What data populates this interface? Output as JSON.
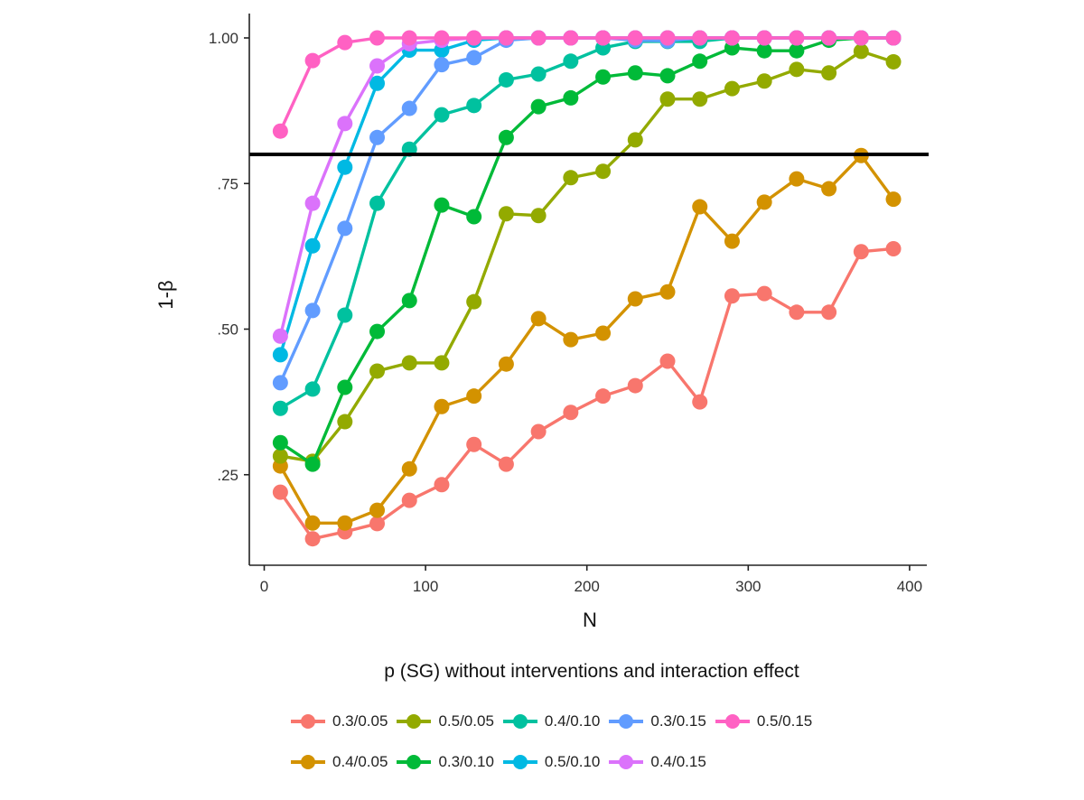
{
  "chart_data": {
    "type": "line",
    "title": "",
    "xlabel": "N",
    "ylabel": "1-β",
    "xlim": [
      -8,
      408
    ],
    "ylim": [
      0.095,
      1.04
    ],
    "x_ticks": [
      0,
      100,
      200,
      300,
      400
    ],
    "x_tick_labels": [
      "0",
      "100",
      "200",
      "300",
      "400"
    ],
    "y_ticks": [
      0.25,
      0.5,
      0.75,
      1.0
    ],
    "y_tick_labels": [
      ".25",
      ".50",
      ".75",
      "1.00"
    ],
    "grid": false,
    "reference_line": {
      "orientation": "horizontal",
      "y": 0.8,
      "color": "#000000"
    },
    "x": [
      10,
      30,
      50,
      70,
      90,
      110,
      130,
      150,
      170,
      190,
      210,
      230,
      250,
      270,
      290,
      310,
      330,
      350,
      370,
      390
    ],
    "legend": {
      "title": "p (SG) without interventions and interaction effect",
      "placement": "bottom",
      "rows": [
        [
          "0.3/0.05",
          "0.5/0.05",
          "0.4/0.10",
          "0.3/0.15",
          "0.5/0.15"
        ],
        [
          "0.4/0.05",
          "0.3/0.10",
          "0.5/0.10",
          "0.4/0.15"
        ]
      ]
    },
    "series": [
      {
        "name": "0.3/0.05",
        "color": "#F8766D",
        "values": [
          0.22,
          0.14,
          0.152,
          0.166,
          0.206,
          0.233,
          0.302,
          0.268,
          0.324,
          0.357,
          0.385,
          0.403,
          0.445,
          0.375,
          0.557,
          0.561,
          0.529,
          0.529,
          0.633,
          0.638
        ]
      },
      {
        "name": "0.4/0.05",
        "color": "#D39200",
        "values": [
          0.265,
          0.167,
          0.167,
          0.189,
          0.26,
          0.367,
          0.385,
          0.44,
          0.518,
          0.482,
          0.493,
          0.552,
          0.564,
          0.71,
          0.651,
          0.718,
          0.758,
          0.741,
          0.798,
          0.723
        ]
      },
      {
        "name": "0.5/0.05",
        "color": "#93AA00",
        "values": [
          0.282,
          0.273,
          0.341,
          0.428,
          0.442,
          0.442,
          0.547,
          0.698,
          0.695,
          0.76,
          0.771,
          0.825,
          0.895,
          0.895,
          0.913,
          0.926,
          0.946,
          0.94,
          0.977,
          0.959
        ]
      },
      {
        "name": "0.3/0.10",
        "color": "#00BA38",
        "values": [
          0.305,
          0.268,
          0.4,
          0.496,
          0.549,
          0.713,
          0.693,
          0.829,
          0.882,
          0.897,
          0.933,
          0.94,
          0.935,
          0.96,
          0.983,
          0.978,
          0.978,
          0.996,
          1.0,
          1.0
        ]
      },
      {
        "name": "0.4/0.10",
        "color": "#00C19F",
        "values": [
          0.364,
          0.397,
          0.524,
          0.716,
          0.809,
          0.868,
          0.884,
          0.928,
          0.938,
          0.96,
          0.983,
          0.994,
          0.994,
          0.994,
          1.0,
          1.0,
          1.0,
          1.0,
          1.0,
          1.0
        ]
      },
      {
        "name": "0.5/0.10",
        "color": "#00B9E3",
        "values": [
          0.456,
          0.643,
          0.778,
          0.922,
          0.979,
          0.979,
          0.996,
          1.0,
          1.0,
          1.0,
          1.0,
          1.0,
          1.0,
          1.0,
          1.0,
          1.0,
          1.0,
          1.0,
          1.0,
          1.0
        ]
      },
      {
        "name": "0.3/0.15",
        "color": "#619CFF",
        "values": [
          0.408,
          0.532,
          0.673,
          0.829,
          0.879,
          0.954,
          0.966,
          0.996,
          1.0,
          1.0,
          1.0,
          0.996,
          0.995,
          1.0,
          1.0,
          1.0,
          1.0,
          1.0,
          1.0,
          1.0
        ]
      },
      {
        "name": "0.4/0.15",
        "color": "#DB72FB",
        "values": [
          0.488,
          0.716,
          0.853,
          0.952,
          0.99,
          0.996,
          1.0,
          1.0,
          1.0,
          1.0,
          1.0,
          1.0,
          1.0,
          1.0,
          1.0,
          1.0,
          1.0,
          1.0,
          1.0,
          1.0
        ]
      },
      {
        "name": "0.5/0.15",
        "color": "#FF61C3",
        "values": [
          0.84,
          0.961,
          0.992,
          1.0,
          1.0,
          1.0,
          1.0,
          1.0,
          1.0,
          1.0,
          1.0,
          1.0,
          1.0,
          1.0,
          1.0,
          1.0,
          1.0,
          1.0,
          1.0,
          1.0
        ]
      }
    ]
  }
}
